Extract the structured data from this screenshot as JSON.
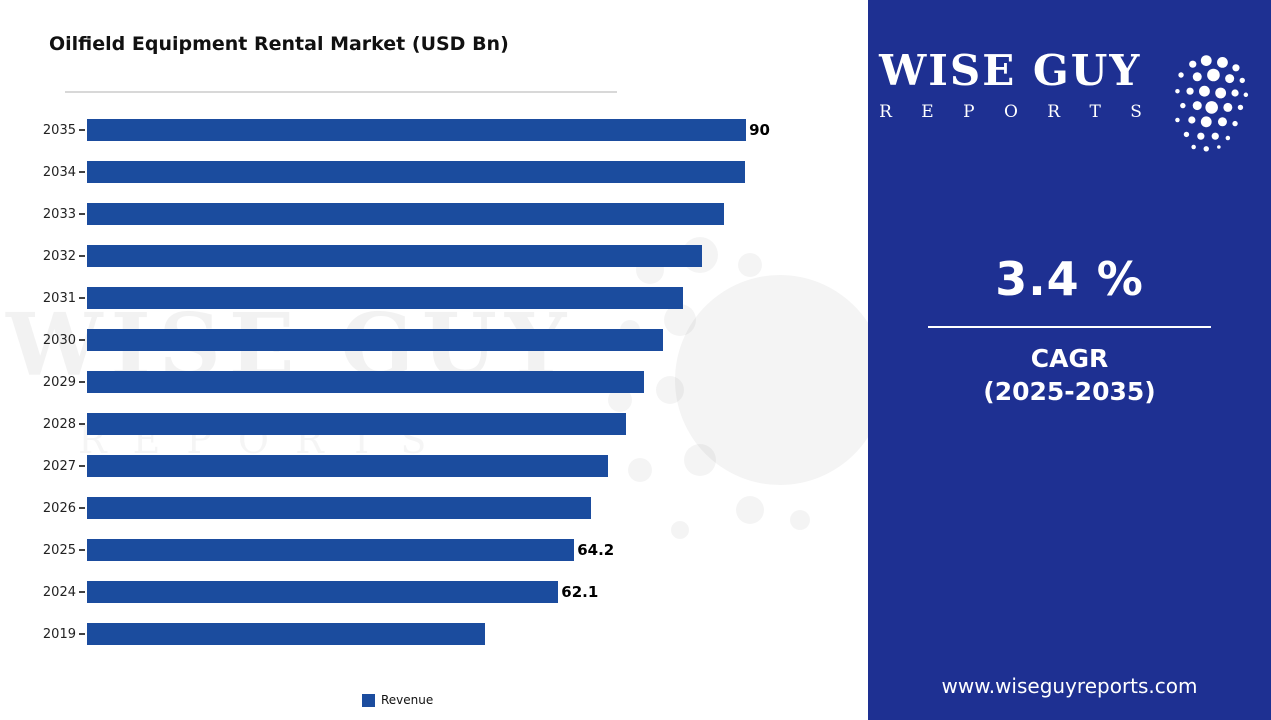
{
  "header": {
    "title": "Oilfield Equipment Rental Market (USD Bn)"
  },
  "legend": {
    "label": "Revenue"
  },
  "watermark": {
    "line1": "WISE GUY",
    "line2": "REPORTS"
  },
  "panel": {
    "logo_line1": "WISE GUY",
    "logo_line2": "R E P O R T S",
    "cagr_value": "3.4 %",
    "cagr_label": "CAGR",
    "cagr_period": "(2025-2035)",
    "website": "www.wiseguyreports.com"
  },
  "colors": {
    "bar": "#1b4c9e",
    "panel": "#1e3092",
    "title_underline": "#d8d8d8"
  },
  "chart_data": {
    "type": "bar",
    "orientation": "horizontal",
    "title": "Oilfield Equipment Rental Market (USD Bn)",
    "xlabel": "",
    "ylabel": "",
    "xlim": [
      0,
      90
    ],
    "grid": false,
    "legend_position": "bottom",
    "categories": [
      "2035",
      "2034",
      "2033",
      "2032",
      "2031",
      "2030",
      "2029",
      "2028",
      "2027",
      "2026",
      "2025",
      "2024",
      "2019"
    ],
    "series": [
      {
        "name": "Revenue",
        "values": [
          90,
          86.7,
          83.9,
          81.1,
          78.5,
          75.9,
          73.4,
          71.0,
          68.6,
          66.4,
          64.2,
          62.1,
          52.5
        ]
      }
    ],
    "data_labels": [
      {
        "category": "2035",
        "label": "90"
      },
      {
        "category": "2025",
        "label": "64.2"
      },
      {
        "category": "2024",
        "label": "62.1"
      }
    ]
  }
}
